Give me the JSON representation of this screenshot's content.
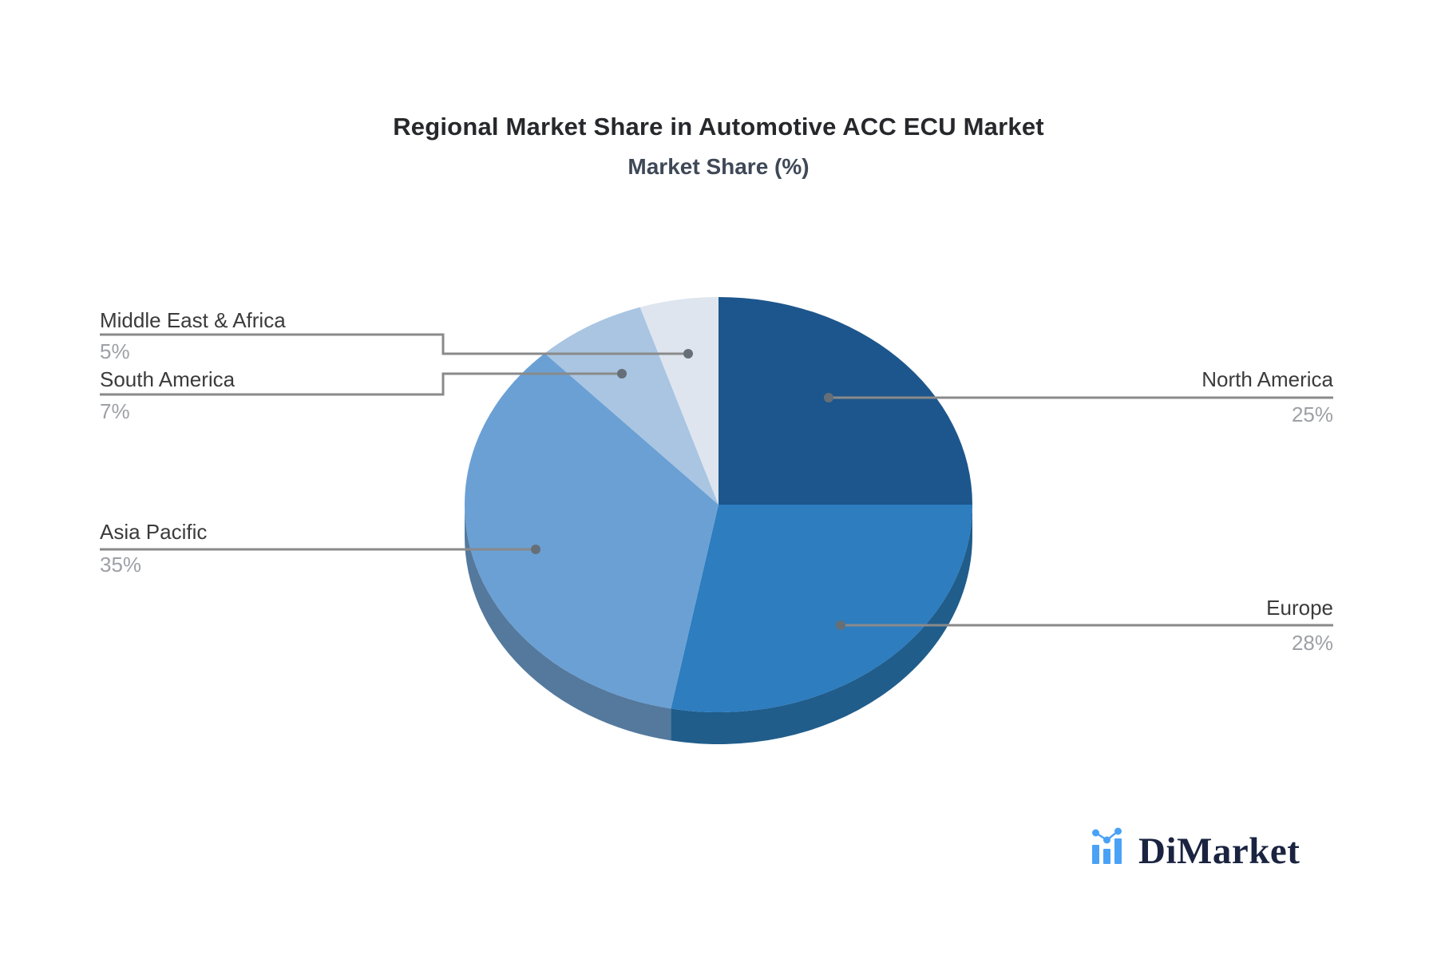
{
  "header": {
    "title": "Regional Market Share in Automotive ACC ECU Market",
    "subtitle": "Market Share (%)"
  },
  "chart_data": {
    "type": "pie",
    "style": "pie-3d",
    "title": "Regional Market Share in Automotive ACC ECU Market",
    "subtitle": "Market Share (%)",
    "unit": "%",
    "start_angle": "12-o-clock",
    "direction": "clockwise",
    "legend_position": "leader-line-callouts",
    "leader_color": "#8a8a8a",
    "dot_color": "#666f77",
    "series": [
      {
        "name": "North America",
        "value": 25,
        "pct": "25%",
        "color": "#1d568c",
        "rim_color": "#17496f"
      },
      {
        "name": "Europe",
        "value": 28,
        "pct": "28%",
        "color": "#2d7dbf",
        "rim_color": "#205d8b"
      },
      {
        "name": "Asia Pacific",
        "value": 35,
        "pct": "35%",
        "color": "#6ba0d4",
        "rim_color": "#54799d"
      },
      {
        "name": "South America",
        "value": 7,
        "pct": "7%",
        "color": "#a9c5e2",
        "rim_color": "#8ba6c1"
      },
      {
        "name": "Middle East & Africa",
        "value": 5,
        "pct": "5%",
        "color": "#dee5ef",
        "rim_color": "#bcc6d4"
      }
    ]
  },
  "logo": {
    "text": "DiMarket",
    "icon_color": "#4aa2f6",
    "text_color": "#1a2440"
  }
}
